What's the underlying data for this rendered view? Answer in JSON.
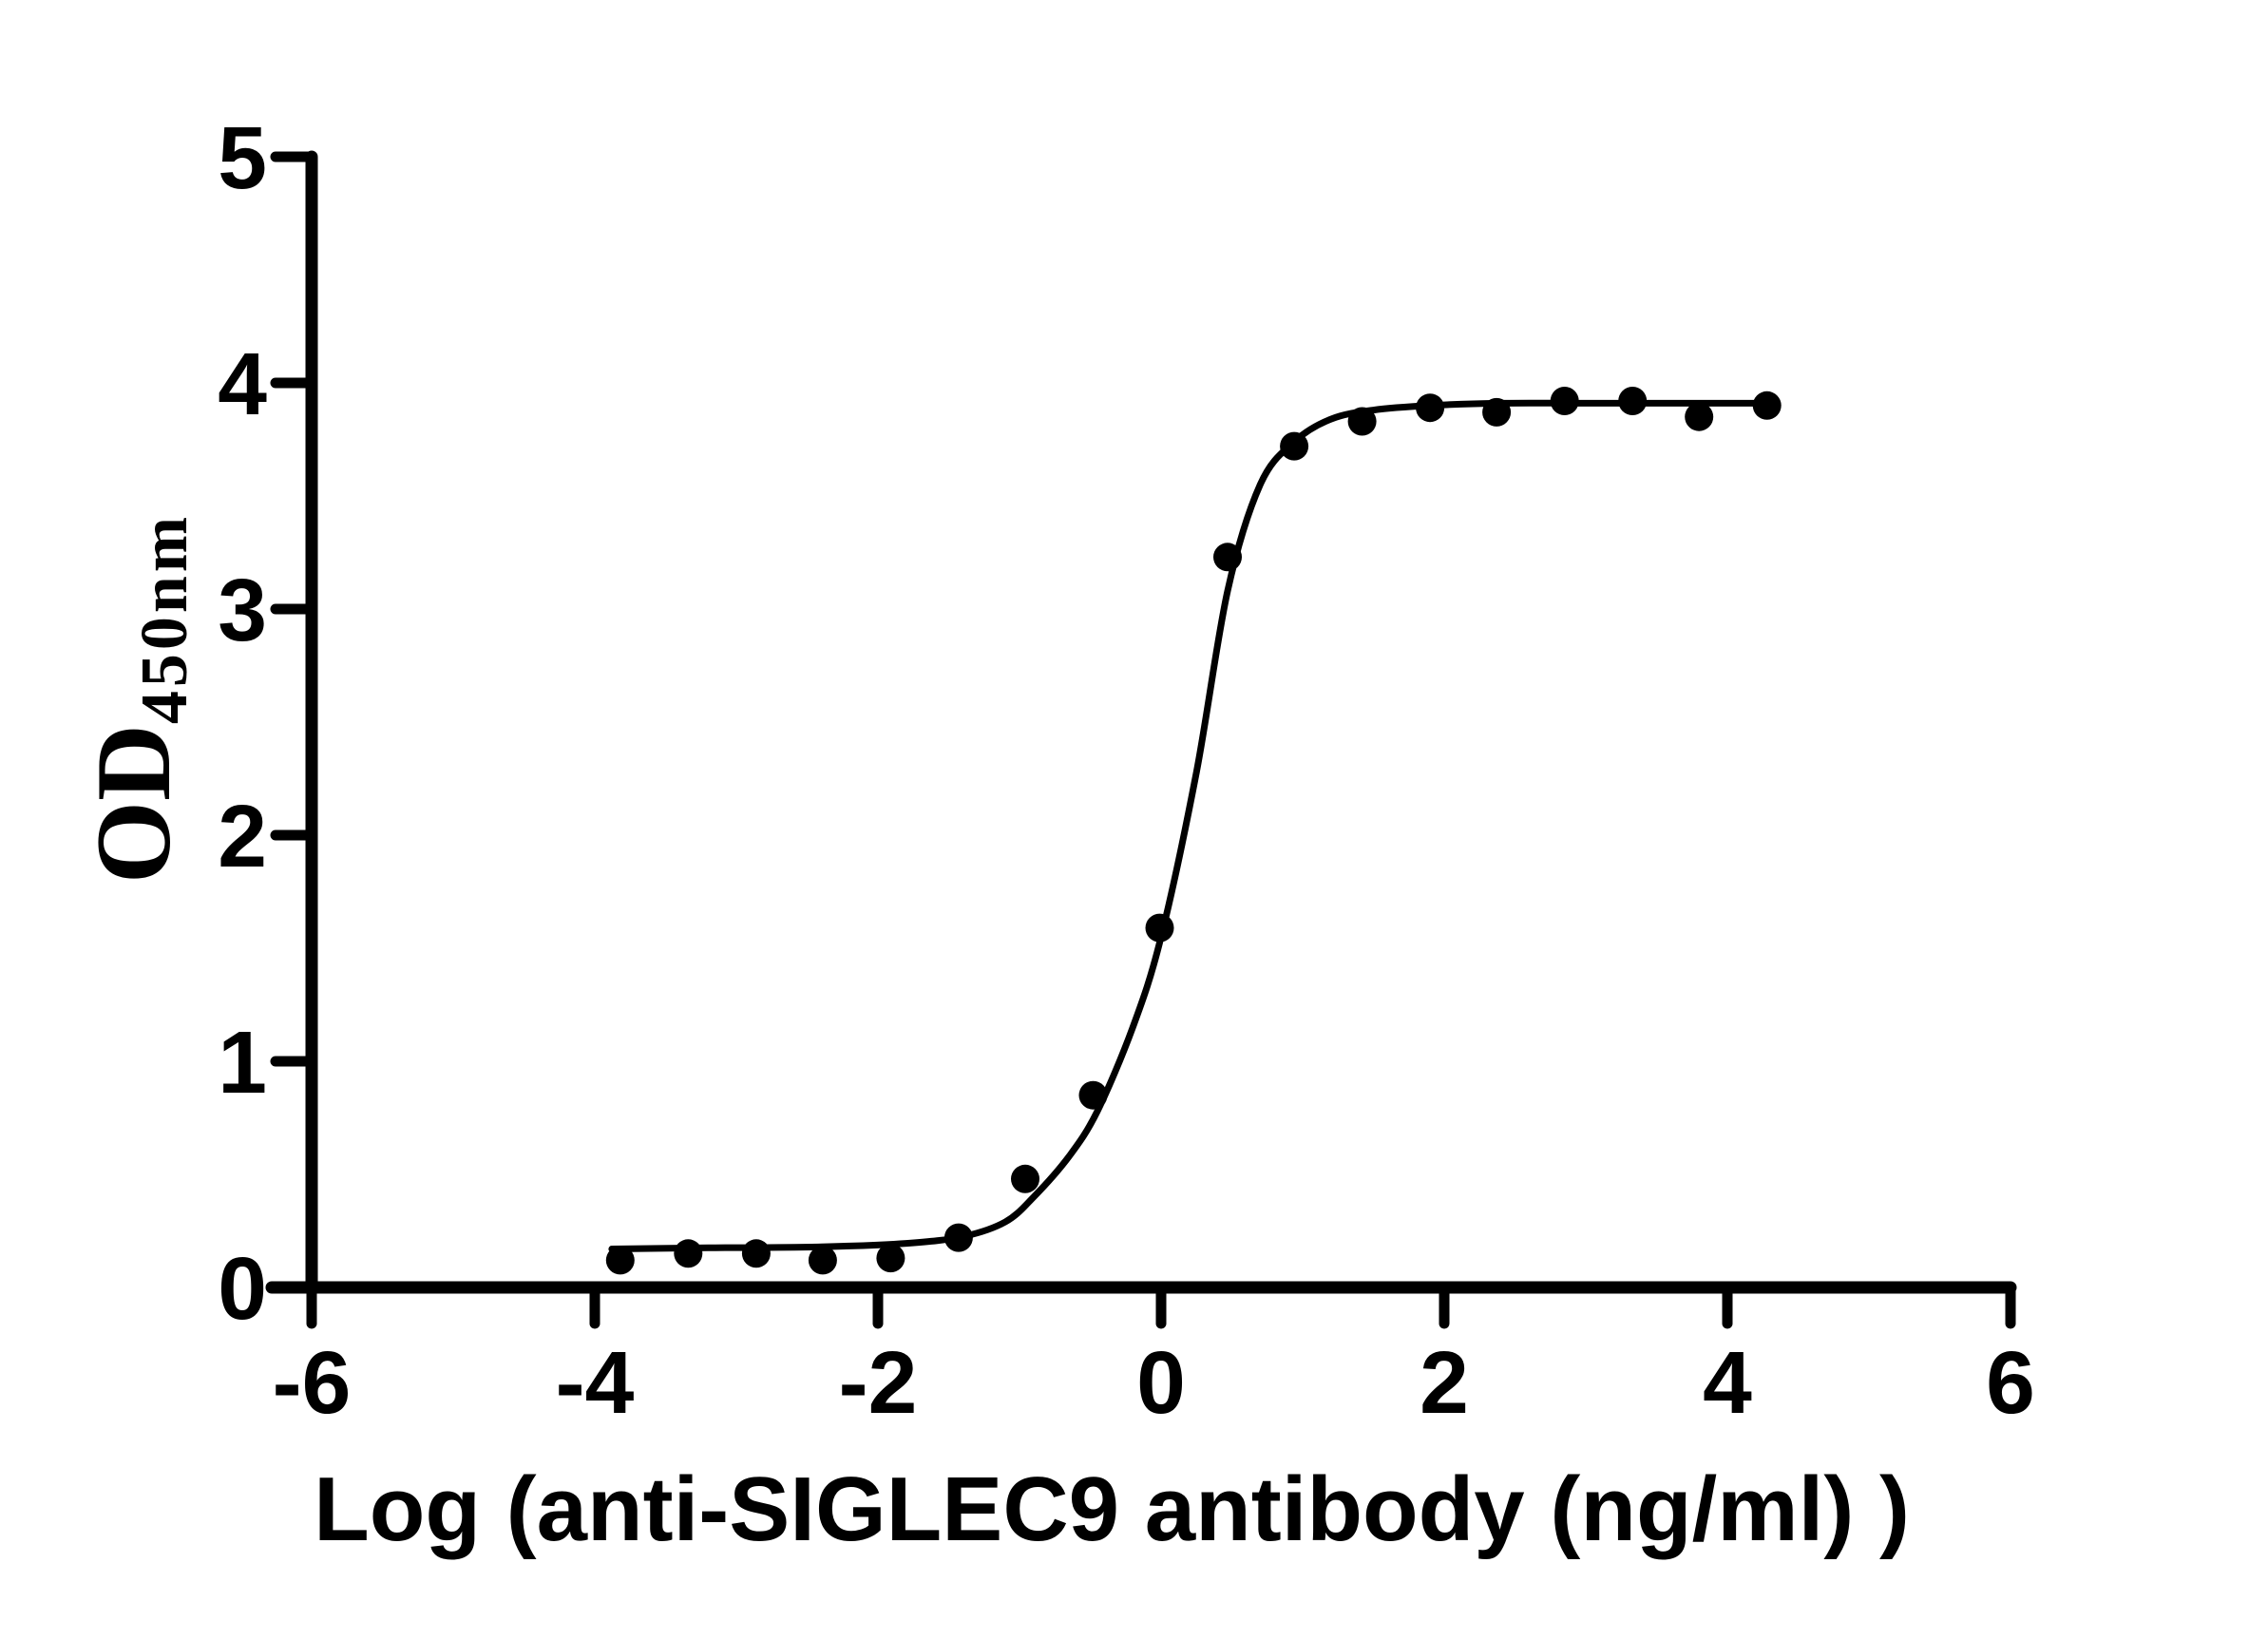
{
  "chart_data": {
    "type": "scatter",
    "title": "",
    "xlabel": "Log （anti-SIGLEC9 antibody（ng/ml） ）",
    "ylabel": "OD",
    "ylabel_subscript": "450nm",
    "xlim": [
      -6,
      6
    ],
    "ylim": [
      0,
      5
    ],
    "x_ticks": [
      "-6",
      "-4",
      "-2",
      "0",
      "2",
      "4",
      "6"
    ],
    "y_ticks": [
      "0",
      "1",
      "2",
      "3",
      "4",
      "5"
    ],
    "grid": false,
    "legend": false,
    "colors": {
      "axis": "#000000",
      "marker": "#000000",
      "curve": "#000000",
      "background": "#ffffff"
    },
    "series": [
      {
        "marker": "filled-circle",
        "x": [
          -3.82,
          -3.34,
          -2.86,
          -2.39,
          -1.91,
          -1.43,
          -0.96,
          -0.48,
          -0.01,
          0.47,
          0.94,
          1.42,
          1.9,
          2.37,
          2.85,
          3.33,
          3.8,
          4.28
        ],
        "y": [
          0.12,
          0.15,
          0.15,
          0.12,
          0.13,
          0.22,
          0.48,
          0.85,
          1.59,
          3.23,
          3.72,
          3.83,
          3.89,
          3.87,
          3.92,
          3.92,
          3.85,
          3.9
        ]
      }
    ],
    "fit_curve": {
      "shape": "sigmoidal-4PL",
      "anchors": [
        [
          -3.88,
          0.17
        ],
        [
          -3.2,
          0.175
        ],
        [
          -2.4,
          0.18
        ],
        [
          -1.8,
          0.195
        ],
        [
          -1.4,
          0.225
        ],
        [
          -1.1,
          0.29
        ],
        [
          -0.9,
          0.4
        ],
        [
          -0.65,
          0.58
        ],
        [
          -0.45,
          0.78
        ],
        [
          -0.2,
          1.15
        ],
        [
          0.0,
          1.55
        ],
        [
          0.25,
          2.28
        ],
        [
          0.47,
          3.08
        ],
        [
          0.7,
          3.55
        ],
        [
          0.94,
          3.74
        ],
        [
          1.2,
          3.84
        ],
        [
          1.5,
          3.88
        ],
        [
          1.9,
          3.9
        ],
        [
          2.4,
          3.91
        ],
        [
          3.0,
          3.91
        ],
        [
          3.6,
          3.91
        ],
        [
          4.28,
          3.91
        ]
      ]
    }
  }
}
